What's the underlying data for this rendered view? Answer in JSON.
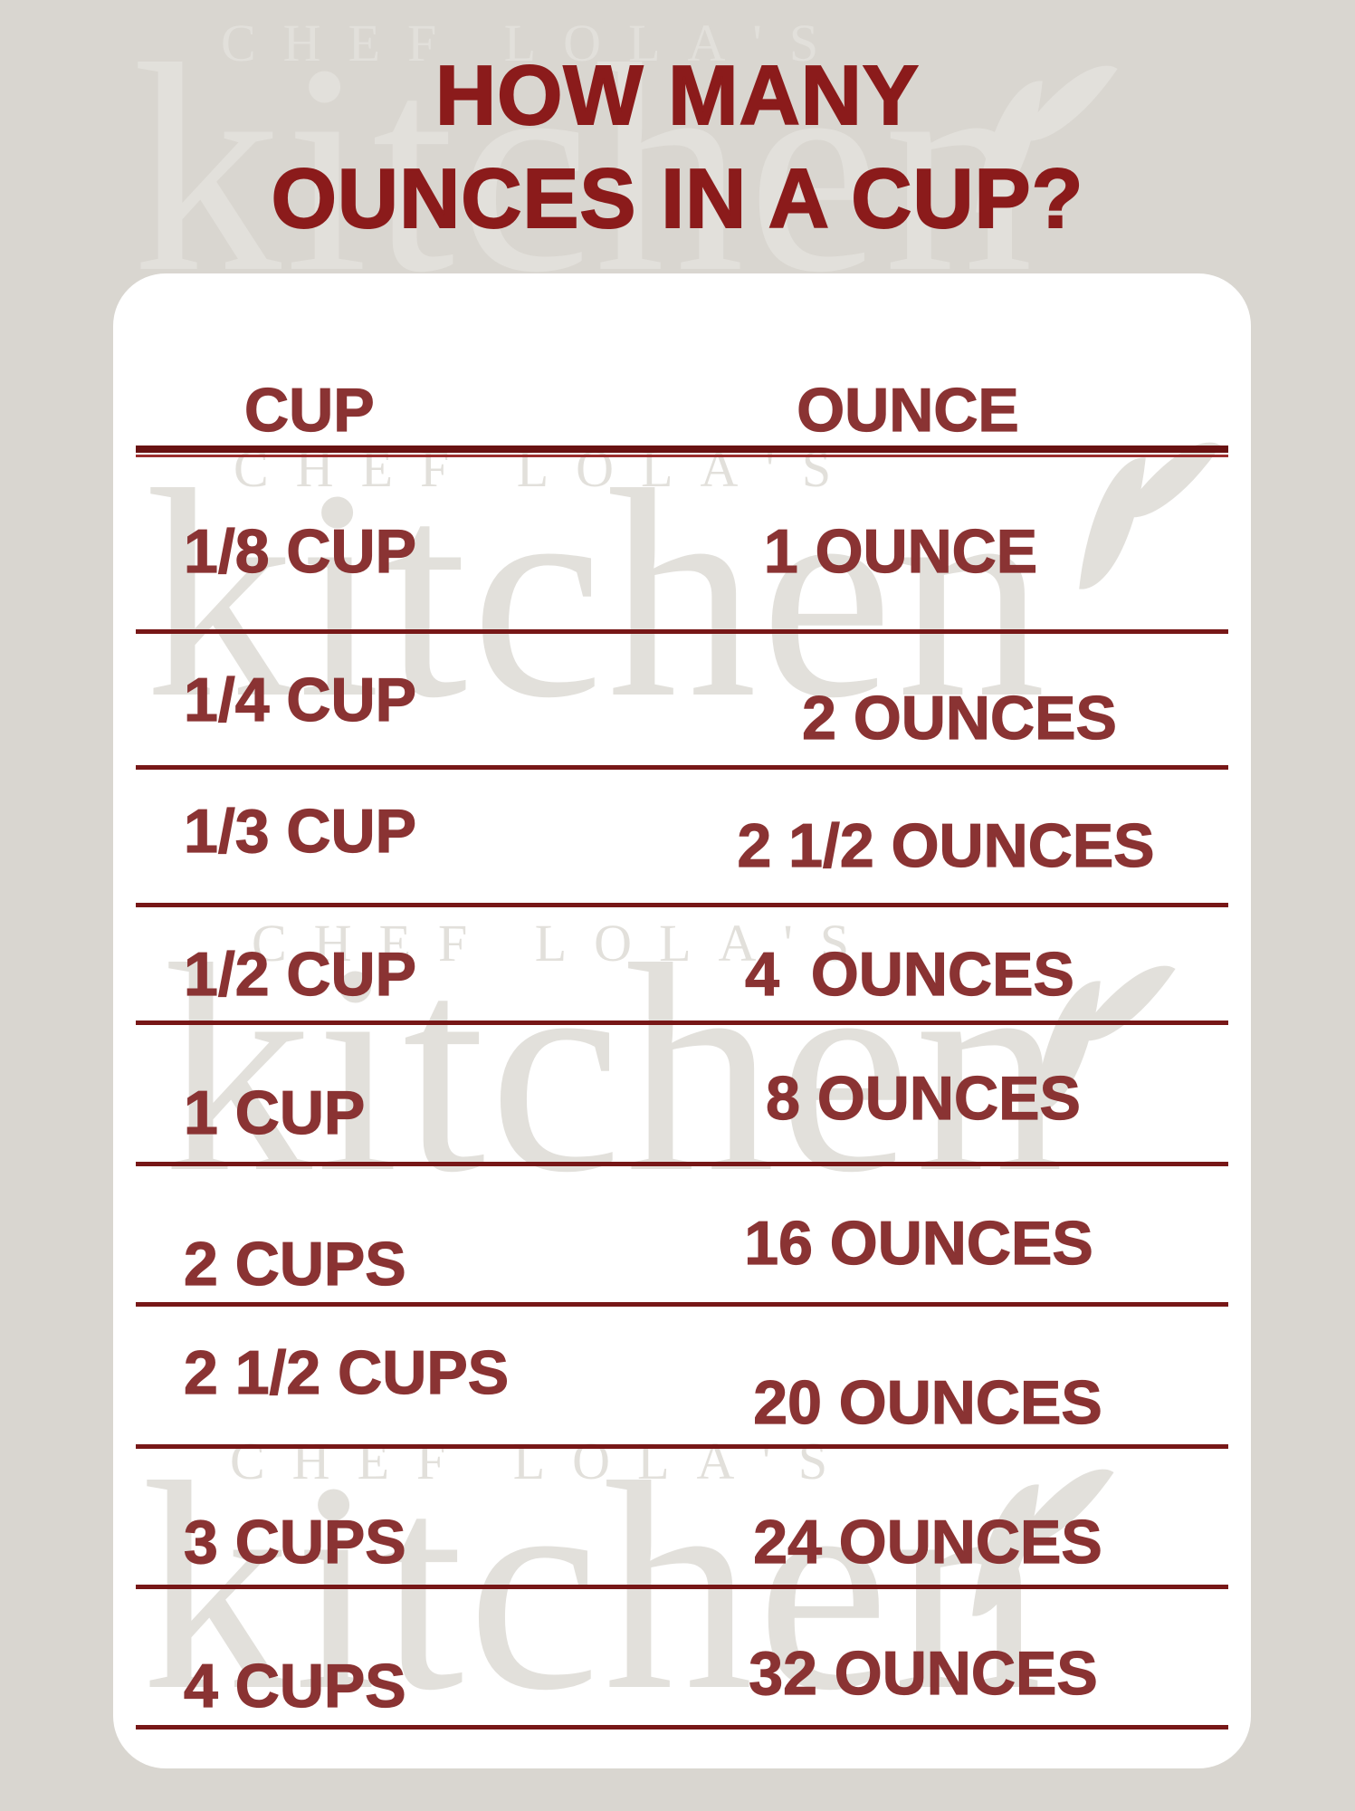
{
  "title": {
    "line1": "HOW MANY",
    "line2": "OUNCES IN A CUP?"
  },
  "chart_data": {
    "type": "table",
    "title": "HOW MANY OUNCES IN A CUP?",
    "columns": [
      "CUP",
      "OUNCE"
    ],
    "rows": [
      [
        "1/8 CUP",
        "1 OUNCE"
      ],
      [
        "1/4 CUP",
        "2 OUNCES"
      ],
      [
        "1/3 CUP",
        "2 1/2 OUNCES"
      ],
      [
        "1/2 CUP",
        "4 OUNCES"
      ],
      [
        "1 CUP",
        "8 OUNCES"
      ],
      [
        "2 CUPS",
        "16 OUNCES"
      ],
      [
        "2 1/2 CUPS",
        "20 OUNCES"
      ],
      [
        "3 CUPS",
        "24 OUNCES"
      ],
      [
        "4 CUPS",
        "32 OUNCES"
      ]
    ],
    "cups_numeric": [
      0.125,
      0.25,
      0.333,
      0.5,
      1,
      2,
      2.5,
      3,
      4
    ],
    "ounces_numeric": [
      1,
      2,
      2.5,
      4,
      8,
      16,
      20,
      24,
      32
    ]
  },
  "watermark": {
    "brand_line": "CHEF LOLA'S",
    "brand_script": "kitchen",
    "icon": "leaf-icon"
  },
  "colors": {
    "background": "#D9D6D0",
    "card": "#FFFFFF",
    "title_red": "#8B1B1B",
    "table_red": "#8A3333",
    "divider_red": "#771717",
    "rule_dark": "#691212",
    "rule_light": "#9C2E2E",
    "watermark_gray": "#E2E0DB"
  }
}
